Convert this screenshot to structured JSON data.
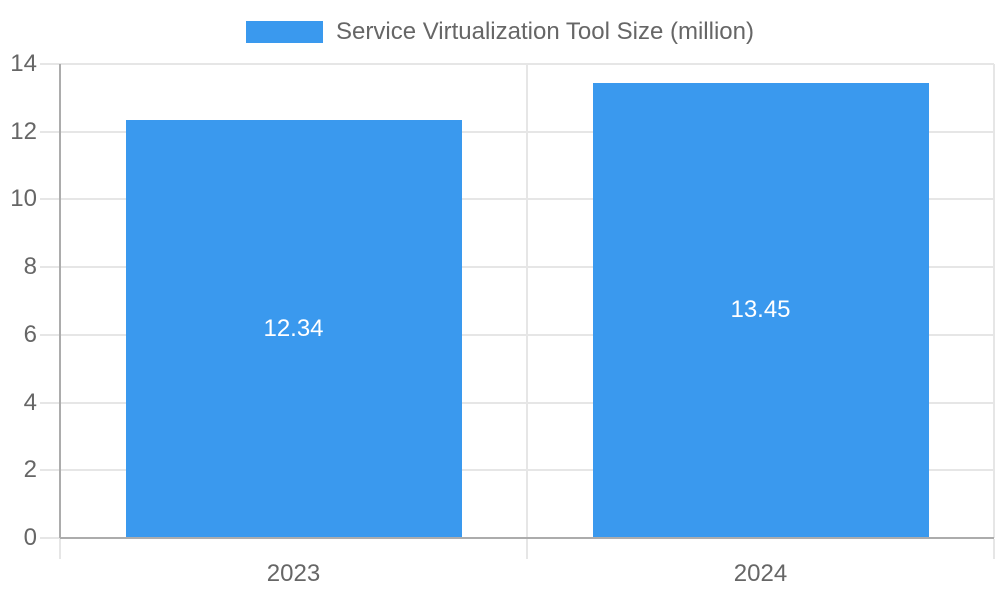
{
  "chart_data": {
    "type": "bar",
    "title": "Service Virtualization Tool Size (million)",
    "categories": [
      "2023",
      "2024"
    ],
    "series": [
      {
        "name": "Service Virtualization Tool Size (million)",
        "values": [
          12.34,
          13.45
        ]
      }
    ],
    "value_labels": [
      "12.34",
      "13.45"
    ],
    "ylim": [
      0,
      14
    ],
    "ytick_step": 2,
    "ytick_labels": [
      "0",
      "2",
      "4",
      "6",
      "8",
      "10",
      "12",
      "14"
    ],
    "grid": true,
    "legend_position": "top-center",
    "colors": {
      "bar": "#3A99EE",
      "bar_value_text": "#FFFFFF",
      "axis_text": "#666666",
      "legend_text": "#666666",
      "gridline": "#E6E6E6",
      "axis_line": "#ACACAC",
      "background": "#FFFFFF"
    }
  }
}
